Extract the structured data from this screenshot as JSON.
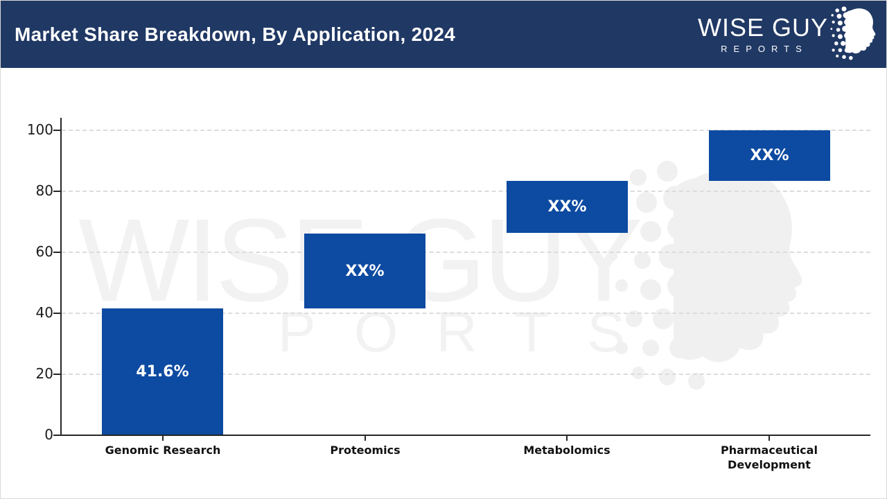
{
  "header": {
    "title": "Market Share Breakdown, By Application, 2024",
    "logo": {
      "brand": "WISE GUY",
      "sub": "REPORTS"
    }
  },
  "watermark": {
    "line1": "WISE GUY",
    "line2": "PORTS"
  },
  "colors": {
    "header_bg": "#203864",
    "bar": "#0d4aa1",
    "grid": "#dcdcdc",
    "axis": "#262626",
    "watermark": "#f2f2f2"
  },
  "chart_data": {
    "type": "bar",
    "subtype": "floating-waterfall",
    "title": "Market Share Breakdown, By Application, 2024",
    "categories": [
      "Genomic Research",
      "Proteomics",
      "Metabolomics",
      "Pharmaceutical Development"
    ],
    "bars": [
      {
        "category": "Genomic Research",
        "start": 0,
        "end": 41.6,
        "label": "41.6%"
      },
      {
        "category": "Proteomics",
        "start": 41.6,
        "end": 66.1,
        "label": "XX%"
      },
      {
        "category": "Metabolomics",
        "start": 66.4,
        "end": 83.4,
        "label": "XX%"
      },
      {
        "category": "Pharmaceutical Development",
        "start": 83.4,
        "end": 100,
        "label": "XX%"
      }
    ],
    "y_ticks": [
      0,
      20,
      40,
      60,
      80,
      100
    ],
    "ylim": [
      0,
      104
    ],
    "xlabel": "",
    "ylabel": "",
    "grid": "horizontal-dashed",
    "legend": "none"
  }
}
